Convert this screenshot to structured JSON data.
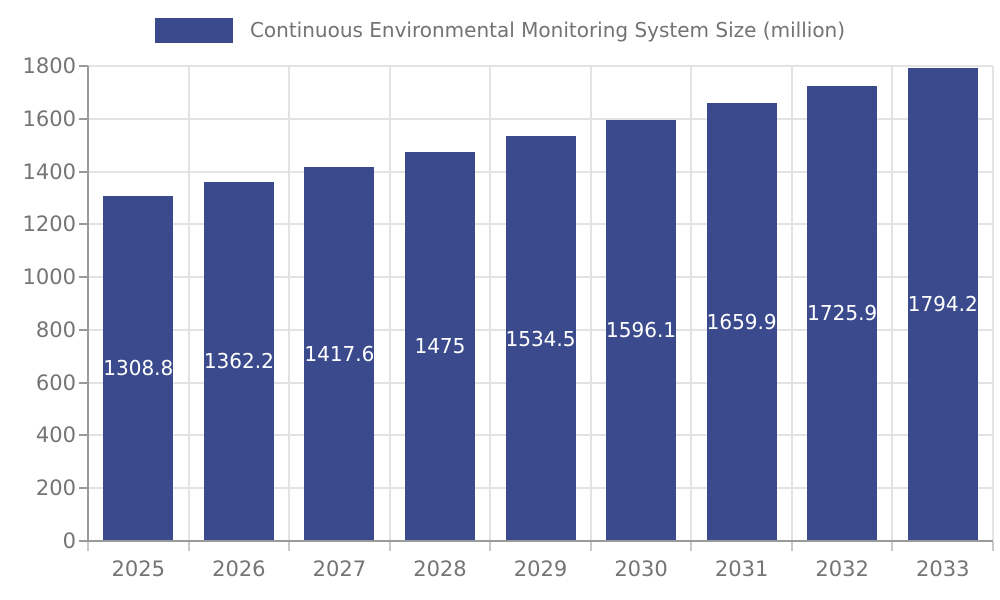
{
  "chart_data": {
    "type": "bar",
    "title": "Continuous Environmental Monitoring System Size (million)",
    "categories": [
      "2025",
      "2026",
      "2027",
      "2028",
      "2029",
      "2030",
      "2031",
      "2032",
      "2033"
    ],
    "series": [
      {
        "name": "Continuous Environmental Monitoring System Size (million)",
        "values": [
          1308.8,
          1362.2,
          1417.6,
          1475,
          1534.5,
          1596.1,
          1659.9,
          1725.9,
          1794.2
        ],
        "value_labels": [
          "1308.8",
          "1362.2",
          "1417.6",
          "1475",
          "1534.5",
          "1596.1",
          "1659.9",
          "1725.9",
          "1794.2"
        ]
      }
    ],
    "xlabel": "",
    "ylabel": "",
    "ylim": [
      0,
      1800
    ],
    "ytick_interval": 200,
    "yticks": [
      0,
      200,
      400,
      600,
      800,
      1000,
      1200,
      1400,
      1600,
      1800
    ],
    "grid": true,
    "legend_position": "top",
    "value_label_position": "center-inside",
    "colors": {
      "bar": "#3a4a8c",
      "value_label": "#ffffff",
      "axis_label": "#757575",
      "legend_text": "#737373",
      "grid_line": "#e3e3e3",
      "axis_line": "#9a9a9a",
      "x_tick": "#c9c9c9",
      "background": "#ffffff"
    }
  }
}
